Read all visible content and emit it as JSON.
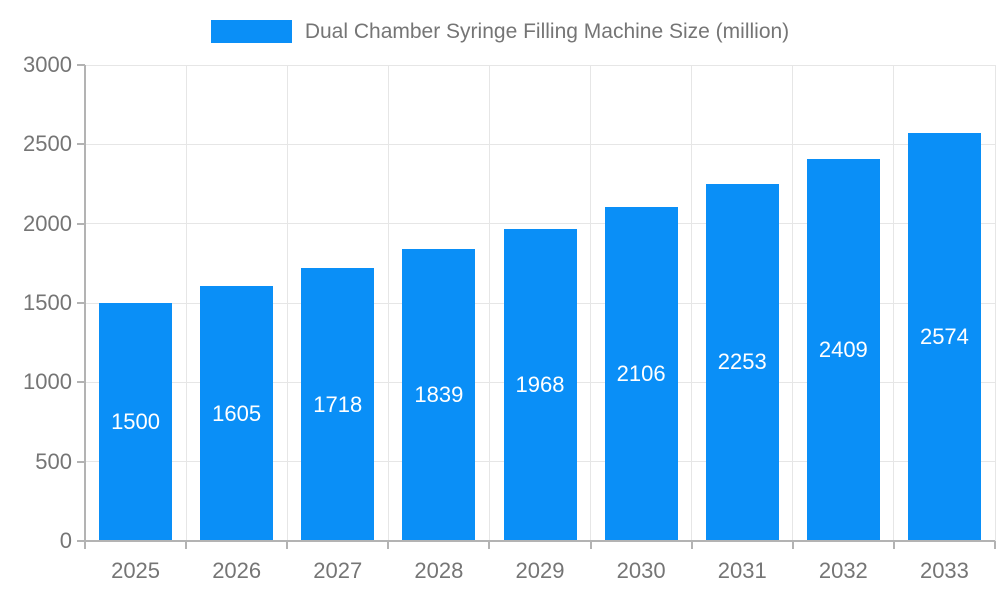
{
  "chart_data": {
    "type": "bar",
    "title": "Dual Chamber Syringe Filling Machine Size (million)",
    "legend": {
      "position": "top",
      "entries": [
        "Dual Chamber Syringe Filling Machine Size (million)"
      ]
    },
    "categories": [
      "2025",
      "2026",
      "2027",
      "2028",
      "2029",
      "2030",
      "2031",
      "2032",
      "2033"
    ],
    "values": [
      1500,
      1605,
      1718,
      1839,
      1968,
      2106,
      2253,
      2409,
      2574
    ],
    "xlabel": "",
    "ylabel": "",
    "ylim": [
      0,
      3000
    ],
    "y_ticks": [
      0,
      500,
      1000,
      1500,
      2000,
      2500,
      3000
    ],
    "grid": true,
    "colors": {
      "bar": "#0a8ff7",
      "bar_value_label": "#ffffff",
      "axis_text": "#757575",
      "legend_text": "#757575",
      "gridline": "#e6e6e6",
      "axis_line": "#b3b3b3",
      "background": "#ffffff"
    }
  }
}
